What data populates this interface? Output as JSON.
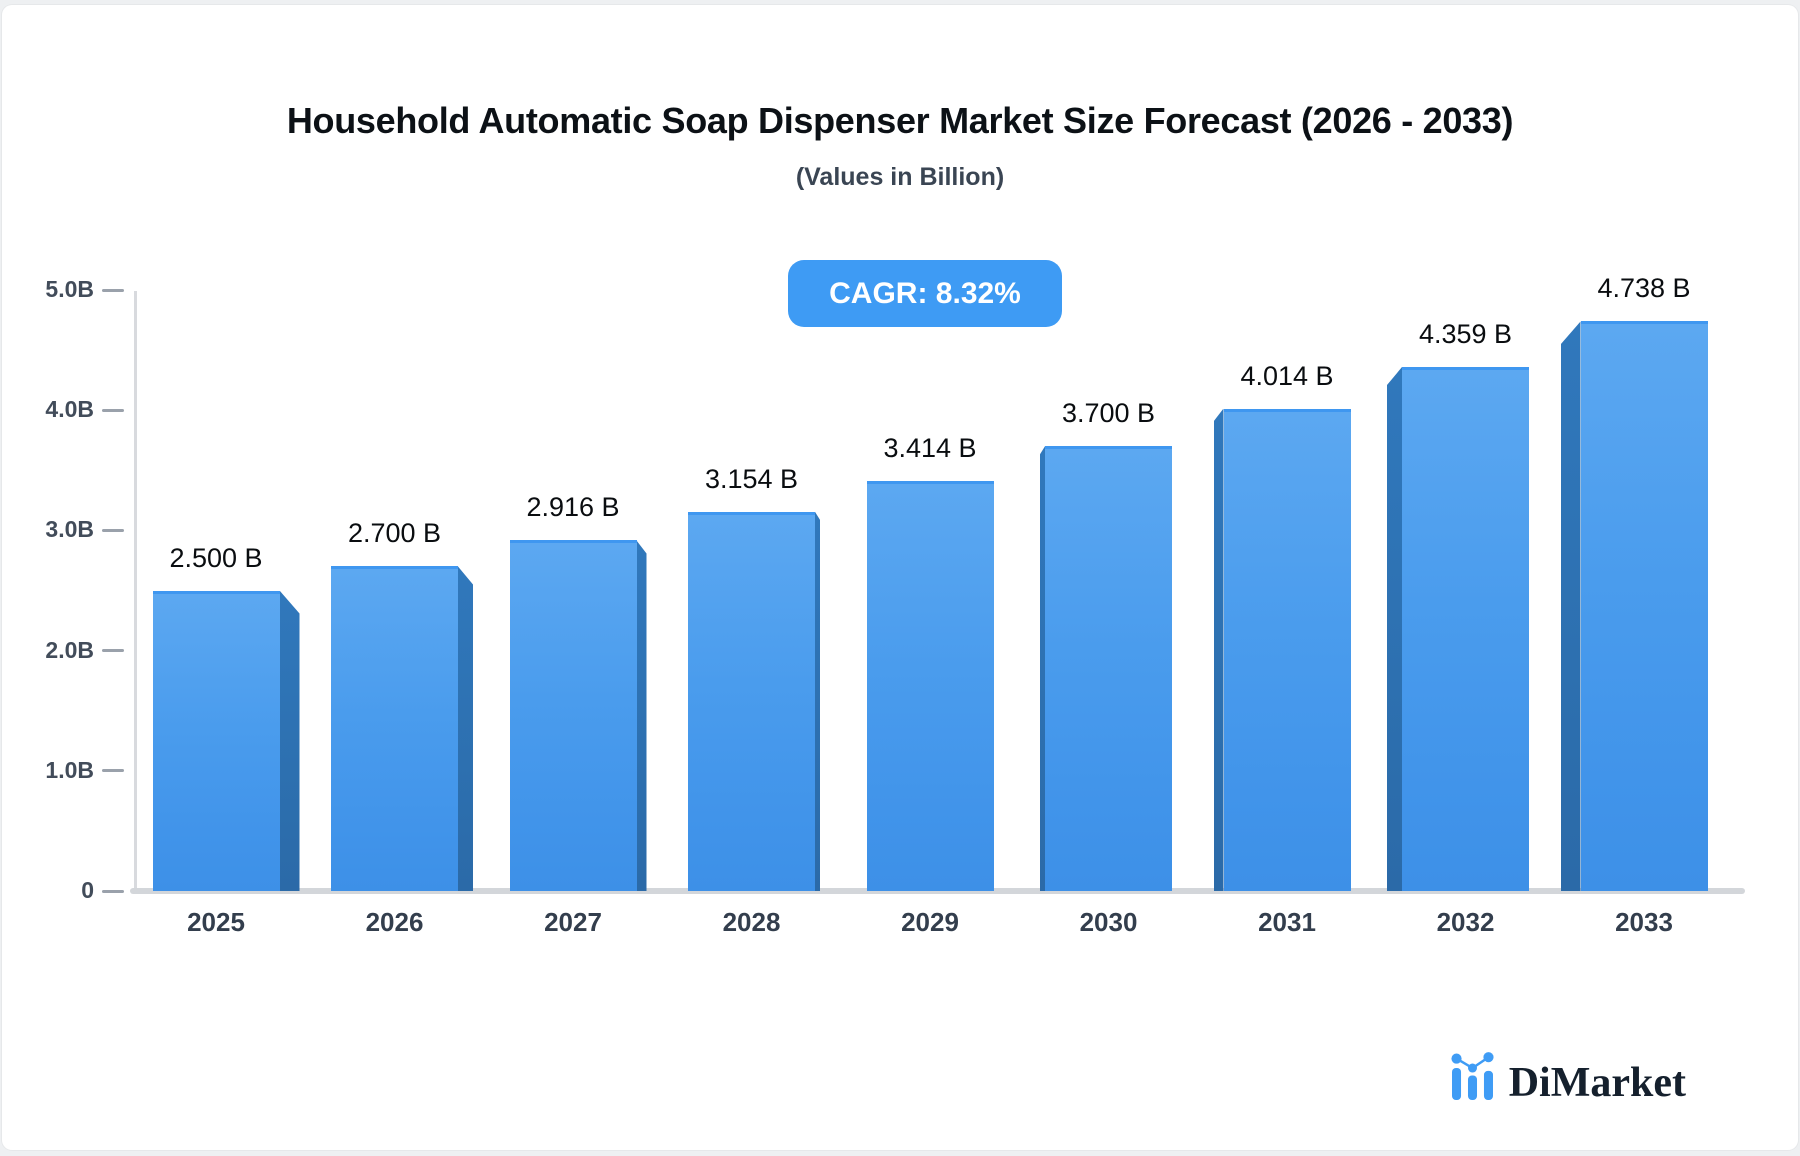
{
  "header": {
    "title": "Household Automatic Soap Dispenser Market Size Forecast (2026 - 2033)",
    "subtitle": "(Values in Billion)",
    "cagr_label": "CAGR: 8.32%"
  },
  "chart_data": {
    "type": "bar",
    "title": "Household Automatic Soap Dispenser Market Size Forecast (2026 - 2033)",
    "subtitle": "(Values in Billion)",
    "annotation": "CAGR: 8.32%",
    "categories": [
      "2025",
      "2026",
      "2027",
      "2028",
      "2029",
      "2030",
      "2031",
      "2032",
      "2033"
    ],
    "values": [
      2.5,
      2.7,
      2.916,
      3.154,
      3.414,
      3.7,
      4.014,
      4.359,
      4.738
    ],
    "value_labels": [
      "2.500 B",
      "2.700 B",
      "2.916 B",
      "3.154 B",
      "3.414 B",
      "3.700 B",
      "4.014 B",
      "4.359 B",
      "4.738 B"
    ],
    "xlabel": "",
    "ylabel": "",
    "ylim": [
      0,
      5
    ],
    "yticks": [
      {
        "value": 5,
        "label": "5.0B"
      },
      {
        "value": 4,
        "label": "4.0B"
      },
      {
        "value": 3,
        "label": "3.0B"
      },
      {
        "value": 2,
        "label": "2.0B"
      },
      {
        "value": 1,
        "label": "1.0B"
      },
      {
        "value": 0,
        "label": "0"
      }
    ],
    "grid": false,
    "legend": false,
    "bar_style": "3d-perspective-center"
  },
  "branding": {
    "logo_text": "DiMarket",
    "logo_icon": "bar-chart-trend-icon"
  },
  "colors": {
    "accent": "#3e9bf4",
    "bar_face": "#4a9ced",
    "bar_side": "#2d70b0",
    "axis_line": "#d8dade",
    "baseline": "#d3d6da",
    "tick_dash": "#9aa1ab",
    "tick_label": "#424c5a",
    "year_label": "#333e4d",
    "value_label": "#0a0d10",
    "logo_text": "#15202d",
    "logo_icon": "#3f9cf5",
    "card_bg": "#ffffff",
    "page_bg": "#eef0f2"
  }
}
